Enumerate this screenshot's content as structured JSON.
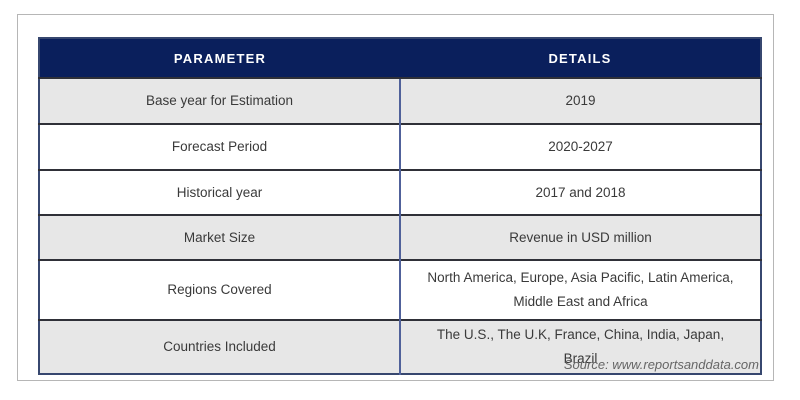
{
  "table": {
    "headers": [
      "PARAMETER",
      "DETAILS"
    ],
    "rows": [
      {
        "parameter": "Base year for Estimation",
        "details": "2019",
        "shaded": true
      },
      {
        "parameter": "Forecast Period",
        "details": "2020-2027",
        "shaded": false
      },
      {
        "parameter": "Historical year",
        "details": "2017 and 2018",
        "shaded": false
      },
      {
        "parameter": "Market Size",
        "details": "Revenue in USD million",
        "shaded": true
      },
      {
        "parameter": "Regions Covered",
        "details": "North America, Europe, Asia Pacific, Latin America, Middle East and Africa",
        "shaded": false
      },
      {
        "parameter": "Countries Included",
        "details": "The U.S., The U.K, France, China, India, Japan, Brazil",
        "shaded": true
      }
    ]
  },
  "source": {
    "label": "Source: www.reportsanddata.com"
  },
  "colors": {
    "header_bg": "#0a1f5c",
    "header_text": "#ffffff",
    "shaded_row_bg": "#e7e7e7",
    "row_divider": "#2f3038",
    "column_divider": "#50619a",
    "card_border": "#b6b6b6",
    "body_text": "#3a3a3a",
    "source_text": "#666666"
  }
}
